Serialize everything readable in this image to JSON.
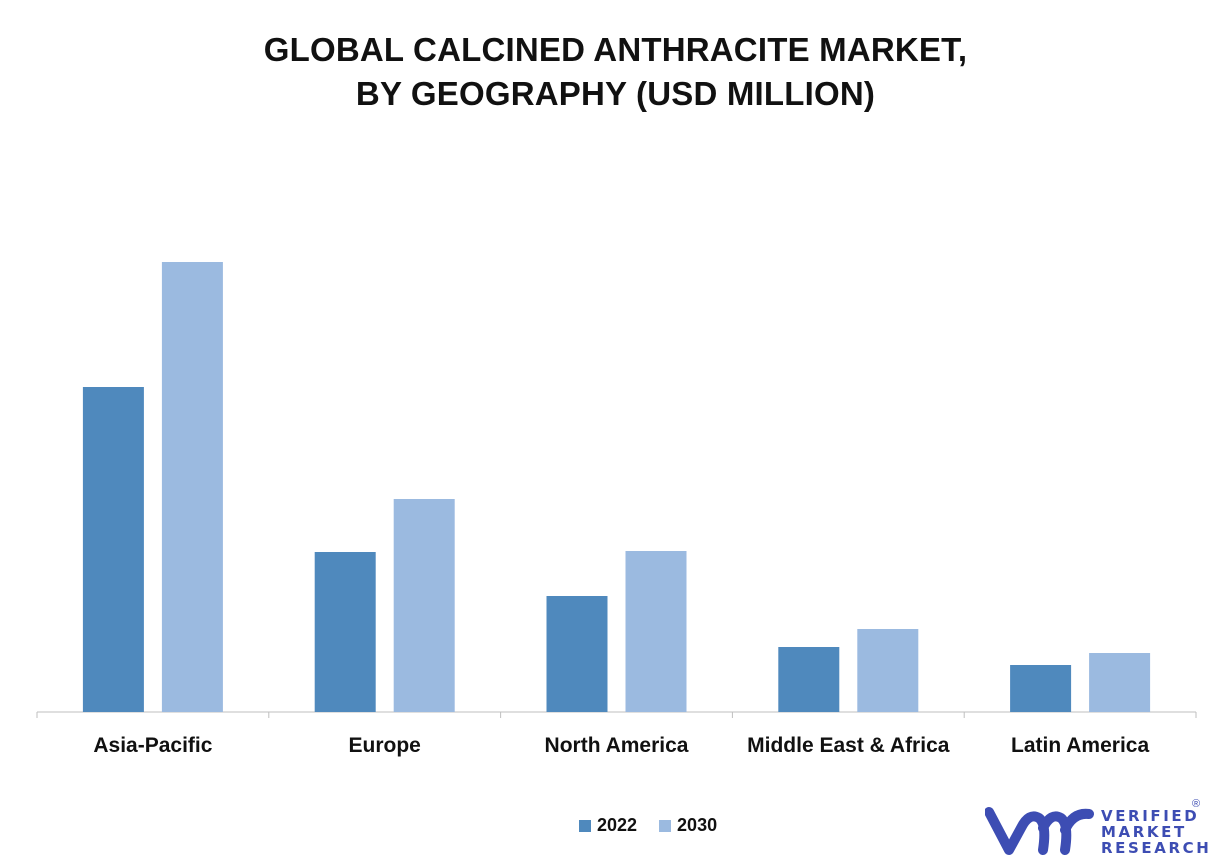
{
  "chart_data": {
    "type": "bar",
    "title_lines": [
      "GLOBAL CALCINED ANTHRACITE MARKET,",
      "BY GEOGRAPHY (USD MILLION)"
    ],
    "categories": [
      "Asia-Pacific",
      "Europe",
      "North America",
      "Middle East & Africa",
      "Latin America"
    ],
    "series": [
      {
        "name": "2022",
        "color": "#4f89bd",
        "values": [
          325,
          160,
          116,
          65,
          47
        ]
      },
      {
        "name": "2030",
        "color": "#9bbae0",
        "values": [
          450,
          213,
          161,
          83,
          59
        ]
      }
    ],
    "ylim": [
      0,
      500
    ],
    "grid": false,
    "legend_position": "bottom",
    "axis_color": "#bfbfbf"
  },
  "branding": {
    "logo_line1": "VERIFIED",
    "logo_line2": "MARKET",
    "logo_line3": "RESEARCH",
    "logo_mark": "®",
    "logo_color": "#3d4db3",
    "logo_icon": "vmr-logo-icon"
  }
}
